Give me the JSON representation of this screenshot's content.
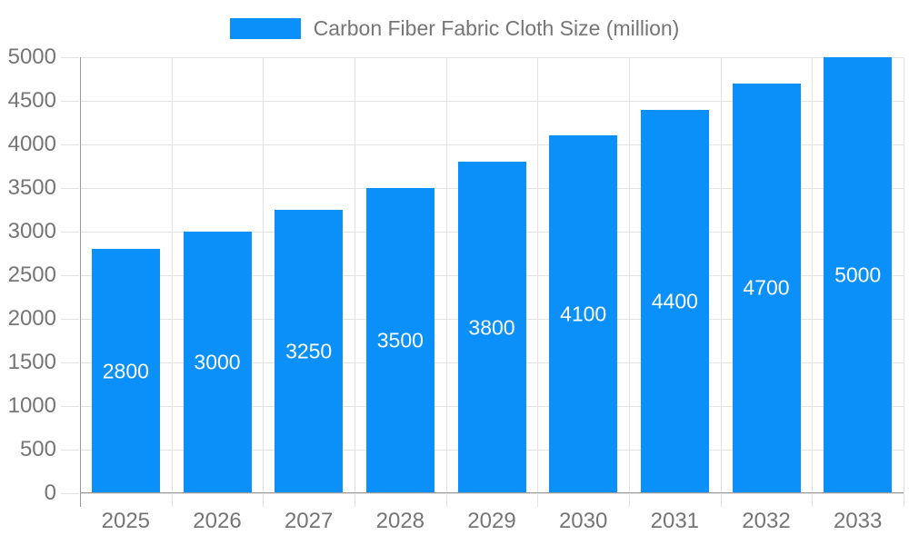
{
  "chart_data": {
    "type": "bar",
    "title": "Carbon Fiber Fabric Cloth Size (million)",
    "legend": [
      "Carbon Fiber Fabric Cloth Size (million)"
    ],
    "legend_position": "top-center",
    "categories": [
      "2025",
      "2026",
      "2027",
      "2028",
      "2029",
      "2030",
      "2031",
      "2032",
      "2033"
    ],
    "values": [
      2800,
      3000,
      3250,
      3500,
      3800,
      4100,
      4400,
      4700,
      5000
    ],
    "value_labels_shown_inside_bars": true,
    "xlabel": "",
    "ylabel": "",
    "ylim": [
      0,
      5000
    ],
    "ytick_step": 500,
    "grid": "on",
    "colors": {
      "bar": "#0a90f8",
      "axis_label": "#757575",
      "legend_text": "#757575",
      "gridline": "#e3e3e3",
      "axis_line": "#999999",
      "value_label": "#ffffff",
      "background": "#ffffff"
    }
  }
}
